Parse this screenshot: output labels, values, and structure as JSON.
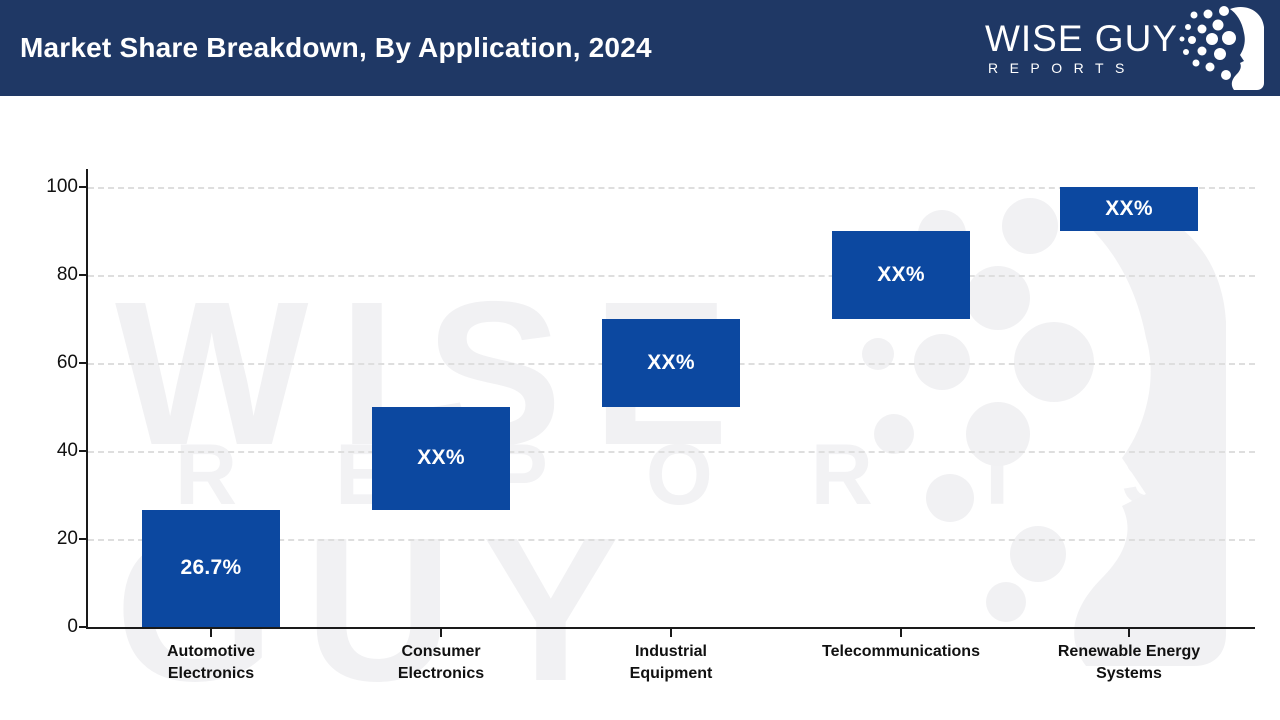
{
  "header": {
    "title": "Market Share Breakdown, By Application, 2024",
    "logo": {
      "line1": "WISE GUY",
      "line2": "REPORTS"
    }
  },
  "watermark": {
    "line1": "WISE GUY",
    "line2": "REPORTS"
  },
  "colors": {
    "header_bg": "#1F3865",
    "bar": "#0C48A0",
    "bar_label": "#ffffff",
    "gridline": "#dedede",
    "axis": "#1a1a1a"
  },
  "chart_data": {
    "type": "bar",
    "subtype": "waterfall",
    "title": "Market Share Breakdown, By Application, 2024",
    "categories": [
      "Automotive\nElectronics",
      "Consumer\nElectronics",
      "Industrial\nEquipment",
      "Telecommunications",
      "Renewable Energy\nSystems"
    ],
    "series": [
      {
        "name": "Market Share %",
        "segments": [
          {
            "category": "Automotive Electronics",
            "start": 0,
            "end": 26.7,
            "label": "26.7%"
          },
          {
            "category": "Consumer Electronics",
            "start": 26.7,
            "end": 50,
            "label": "XX%"
          },
          {
            "category": "Industrial Equipment",
            "start": 50,
            "end": 70,
            "label": "XX%"
          },
          {
            "category": "Telecommunications",
            "start": 70,
            "end": 90,
            "label": "XX%"
          },
          {
            "category": "Renewable Energy Systems",
            "start": 90,
            "end": 100,
            "label": "XX%"
          }
        ]
      }
    ],
    "xlabel": "",
    "ylabel": "",
    "ylim": [
      0,
      100
    ],
    "yticks": [
      0,
      20,
      40,
      60,
      80,
      100
    ],
    "grid": "horizontal-dashed",
    "legend": "none"
  }
}
